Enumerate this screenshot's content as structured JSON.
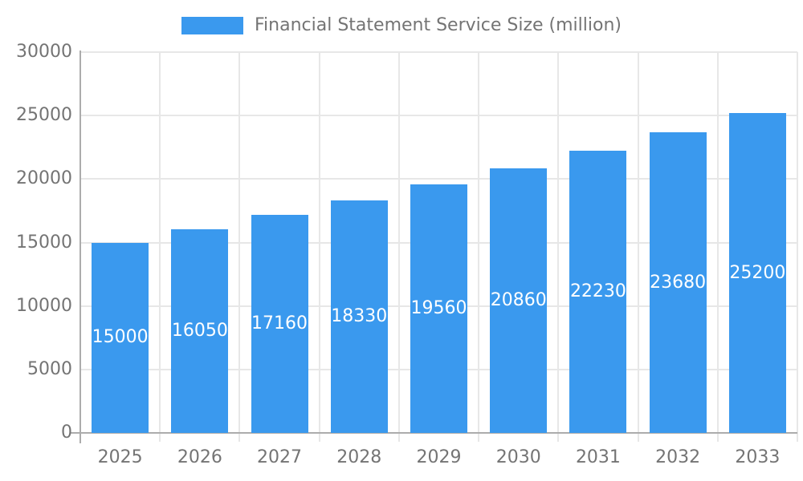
{
  "colors": {
    "bar_fill": "#3A99EE",
    "bar_label_text": "#FFFFFF",
    "axis_text": "#747474",
    "legend_text": "#747474",
    "gridline": "#E7E7E7",
    "axis_line": "#ACACAC",
    "background": "#FFFFFF"
  },
  "chart_data": {
    "type": "bar",
    "title": "",
    "series_name": "Financial Statement Service Size (million)",
    "categories": [
      "2025",
      "2026",
      "2027",
      "2028",
      "2029",
      "2030",
      "2031",
      "2032",
      "2033"
    ],
    "values": [
      15000,
      16050,
      17160,
      18330,
      19560,
      20860,
      22230,
      23680,
      25200
    ],
    "data_labels": [
      "15000",
      "16050",
      "17160",
      "18330",
      "19560",
      "20860",
      "22230",
      "23680",
      "25200"
    ],
    "xlabel": "",
    "ylabel": "",
    "ylim": [
      0,
      30000
    ],
    "ytick_step": 5000,
    "ytick_labels": [
      "0",
      "5000",
      "10000",
      "15000",
      "20000",
      "25000",
      "30000"
    ],
    "grid": true,
    "legend_position": "top-center",
    "data_label_style": "inside-center-white"
  }
}
